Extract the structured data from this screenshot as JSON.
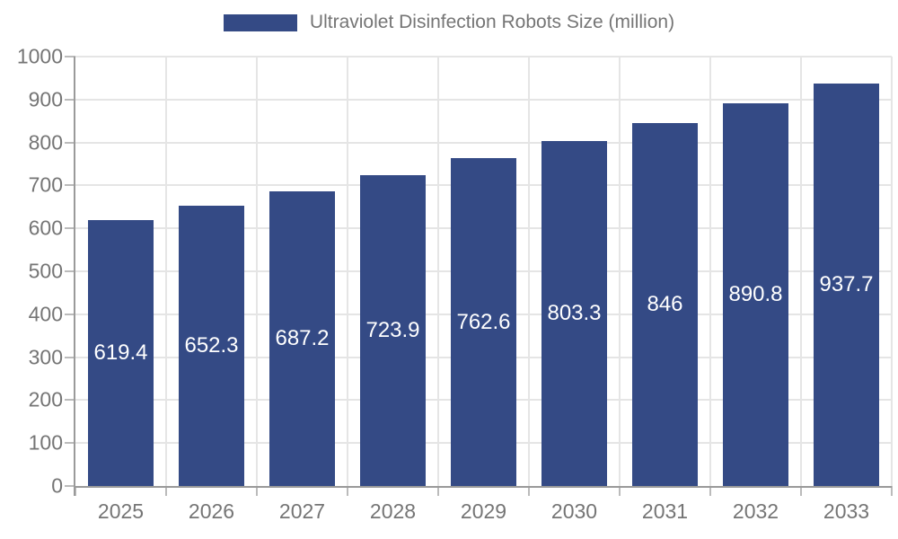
{
  "chart_data": {
    "type": "bar",
    "title": "Ultraviolet Disinfection Robots Size (million)",
    "categories": [
      "2025",
      "2026",
      "2027",
      "2028",
      "2029",
      "2030",
      "2031",
      "2032",
      "2033"
    ],
    "values": [
      619.4,
      652.3,
      687.2,
      723.9,
      762.6,
      803.3,
      846,
      890.8,
      937.7
    ],
    "xlabel": "",
    "ylabel": "",
    "ylim": [
      0,
      1000
    ],
    "yticks": [
      0,
      100,
      200,
      300,
      400,
      500,
      600,
      700,
      800,
      900,
      1000
    ],
    "grid": true,
    "legend_position": "top",
    "colors": {
      "bar": "#344A85",
      "value_label": "#ffffff",
      "axis_text": "#757575",
      "grid": "#e5e5e5",
      "axis_line": "#9a9a9a",
      "tick": "#bbbbbb",
      "background": "#ffffff"
    }
  }
}
